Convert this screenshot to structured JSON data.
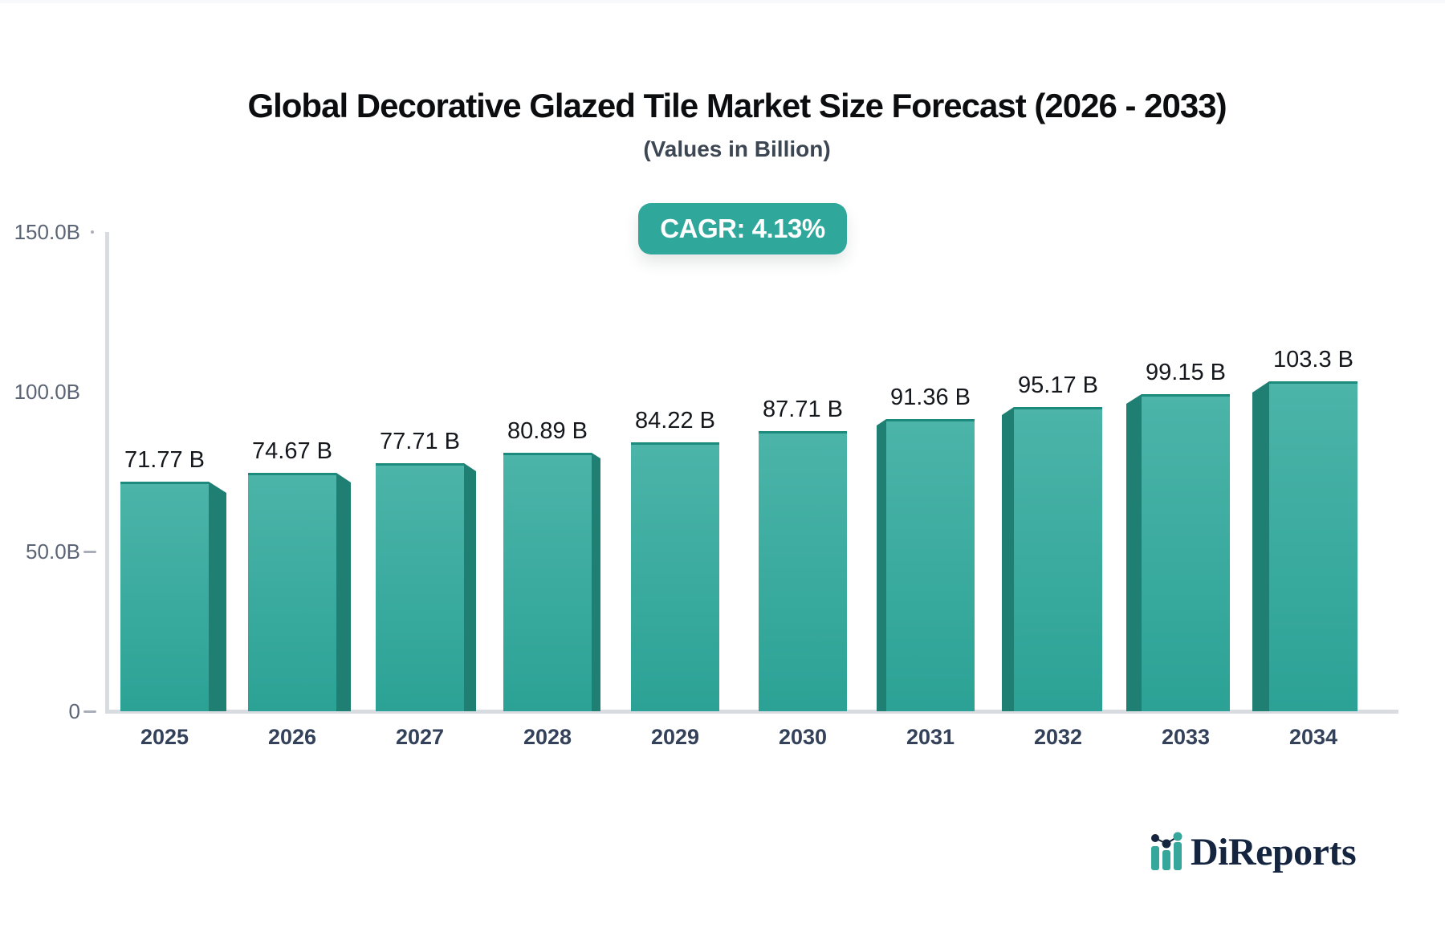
{
  "header": {
    "title": "Global Decorative Glazed Tile Market Size Forecast (2026 - 2033)",
    "subtitle": "(Values in Billion)"
  },
  "badge": {
    "label": "CAGR: 4.13%"
  },
  "branding": {
    "name": "DiReports",
    "icon": "bar-chart-logo-icon"
  },
  "colors": {
    "bar_face_top": "#4cb4a9",
    "bar_face_bottom": "#2ba295",
    "bar_side": "#1f7f73",
    "bar_top_edge": "#1d8a7e",
    "badge_bg": "#2fa79b",
    "axis": "#d8dbe0",
    "year_label": "#33415a",
    "ytick_label": "#5c6575",
    "logo_navy": "#16253f",
    "logo_teal": "#37a69b"
  },
  "chart_data": {
    "type": "bar",
    "title": "Global Decorative Glazed Tile Market Size Forecast (2026 - 2033)",
    "subtitle": "(Values in Billion)",
    "cagr_label": "CAGR: 4.13%",
    "categories": [
      "2025",
      "2026",
      "2027",
      "2028",
      "2029",
      "2030",
      "2031",
      "2032",
      "2033",
      "2034"
    ],
    "values": [
      71.77,
      74.67,
      77.71,
      80.89,
      84.22,
      87.71,
      91.36,
      95.17,
      99.15,
      103.3
    ],
    "value_labels": [
      "71.77 B",
      "74.67 B",
      "77.71 B",
      "80.89 B",
      "84.22 B",
      "87.71 B",
      "91.36 B",
      "95.17 B",
      "99.15 B",
      "103.3 B"
    ],
    "xlabel": "",
    "ylabel": "",
    "ylim": [
      0,
      150
    ],
    "grid": false,
    "legend": false,
    "yticks": [
      {
        "label": "150.0B",
        "value": 150,
        "tick": "dot"
      },
      {
        "label": "100.0B",
        "value": 100,
        "tick": "none"
      },
      {
        "label": "50.0B",
        "value": 50,
        "tick": "dash"
      },
      {
        "label": "0",
        "value": 0,
        "tick": "dash"
      }
    ]
  }
}
